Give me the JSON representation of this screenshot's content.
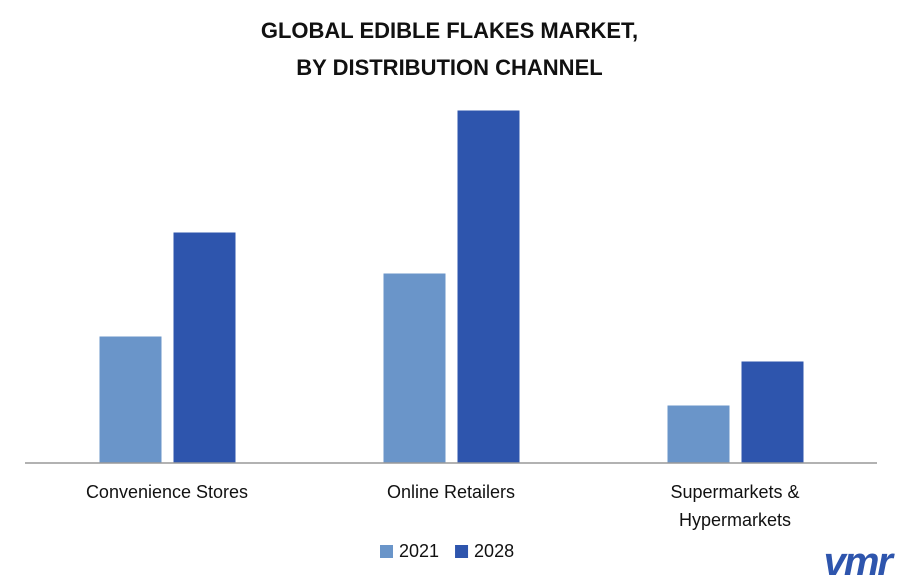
{
  "chart_data": {
    "type": "bar",
    "title": [
      "GLOBAL EDIBLE FLAKES MARKET,",
      "BY DISTRIBUTION CHANNEL"
    ],
    "categories": [
      "Convenience Stores",
      "Online Retailers",
      "Supermarkets & Hypermarkets"
    ],
    "series": [
      {
        "name": "2021",
        "color": "#6a95c9",
        "values": [
          127,
          190,
          58
        ]
      },
      {
        "name": "2028",
        "color": "#2e55ad",
        "values": [
          231,
          353,
          102
        ]
      }
    ],
    "ylim": [
      0,
      363
    ],
    "legend": "bottom"
  },
  "logo": "vmr"
}
